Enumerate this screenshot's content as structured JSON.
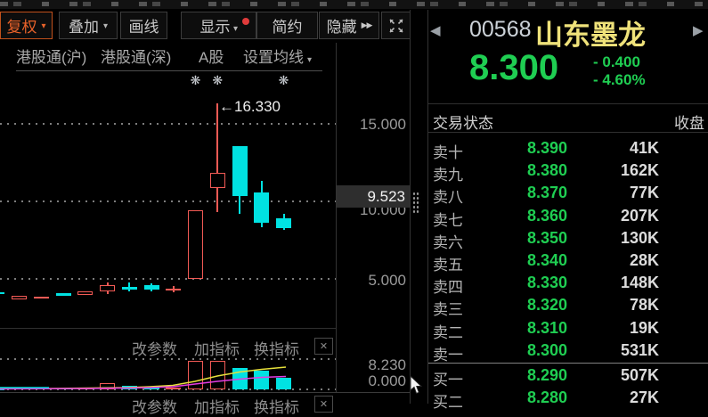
{
  "toolbar": {
    "buttons": [
      {
        "label": "复权",
        "caret": true,
        "active": true
      },
      {
        "label": "叠加",
        "caret": true
      },
      {
        "label": "画线"
      },
      {
        "label": "显示",
        "caret": true,
        "has_red_dot": true
      },
      {
        "label": "简约"
      },
      {
        "label": "隐藏",
        "chevrons": "▶▶"
      }
    ]
  },
  "icons": {
    "caret_down": "▾",
    "snowflake": "❋",
    "prev_arrow": "◀",
    "next_arrow": "▶",
    "close": "✕"
  },
  "tabs": [
    {
      "label": "港股通(沪)"
    },
    {
      "label": "港股通(深)"
    },
    {
      "label": "A股"
    },
    {
      "label": "设置均线",
      "caret": true
    }
  ],
  "indicator_bar": {
    "items": [
      {
        "label": "改参数"
      },
      {
        "label": "加指标"
      },
      {
        "label": "换指标"
      }
    ]
  },
  "chart_data": {
    "type": "candlestick",
    "y_axis": {
      "ticks": [
        {
          "label": "15.000",
          "value": 15.0
        },
        {
          "label": "10.000",
          "value": 10.0
        },
        {
          "label": "5.000",
          "value": 5.0
        }
      ],
      "crosshair_label": "9.523"
    },
    "volume_axis": {
      "max_label": "8.230",
      "min_label": "0.000",
      "max_value": 8.23
    },
    "annotation": {
      "text": "←16.330",
      "value": 16.33
    },
    "suspension_marker_indices": [
      9,
      10,
      13
    ],
    "candles": [
      {
        "open": 4.15,
        "close": 4.05,
        "high": 4.15,
        "low": 4.05,
        "dir": "down"
      },
      {
        "open": 3.68,
        "close": 3.91,
        "high": 3.93,
        "low": 3.66,
        "dir": "up"
      },
      {
        "open": 3.79,
        "close": 3.86,
        "high": 3.88,
        "low": 3.77,
        "dir": "up"
      },
      {
        "open": 4.08,
        "close": 3.97,
        "high": 4.1,
        "low": 3.95,
        "dir": "down"
      },
      {
        "open": 3.97,
        "close": 4.2,
        "high": 4.22,
        "low": 3.95,
        "dir": "up"
      },
      {
        "open": 4.2,
        "close": 4.6,
        "high": 4.77,
        "low": 4.03,
        "dir": "up"
      },
      {
        "open": 4.48,
        "close": 4.37,
        "high": 4.77,
        "low": 4.2,
        "dir": "down"
      },
      {
        "open": 4.6,
        "close": 4.31,
        "high": 4.71,
        "low": 4.2,
        "dir": "down"
      },
      {
        "open": 4.25,
        "close": 4.37,
        "high": 4.54,
        "low": 4.14,
        "dir": "up"
      },
      {
        "open": 5.0,
        "close": 9.43,
        "high": 9.43,
        "low": 5.0,
        "dir": "up"
      },
      {
        "open": 10.86,
        "close": 11.84,
        "high": 16.33,
        "low": 9.31,
        "dir": "up"
      },
      {
        "open": 13.56,
        "close": 10.34,
        "high": 13.56,
        "low": 9.2,
        "dir": "down"
      },
      {
        "open": 10.57,
        "close": 8.62,
        "high": 11.32,
        "low": 8.33,
        "dir": "down"
      },
      {
        "open": 8.9,
        "close": 8.3,
        "high": 9.2,
        "low": 8.16,
        "dir": "down"
      }
    ],
    "volumes": [
      {
        "value": 0.2,
        "dir": "down"
      },
      {
        "value": 0.35,
        "dir": "up"
      },
      {
        "value": 0.3,
        "dir": "up"
      },
      {
        "value": 0.3,
        "dir": "down"
      },
      {
        "value": 0.4,
        "dir": "up"
      },
      {
        "value": 1.7,
        "dir": "up"
      },
      {
        "value": 1.0,
        "dir": "down"
      },
      {
        "value": 0.75,
        "dir": "down"
      },
      {
        "value": 0.5,
        "dir": "up"
      },
      {
        "value": 7.75,
        "dir": "up"
      },
      {
        "value": 7.75,
        "dir": "up"
      },
      {
        "value": 5.8,
        "dir": "down"
      },
      {
        "value": 5.1,
        "dir": "down"
      },
      {
        "value": 3.15,
        "dir": "down"
      }
    ],
    "volume_ma": {
      "yellow": [
        [
          0,
          436
        ],
        [
          60,
          436
        ],
        [
          100,
          435.5
        ],
        [
          143,
          435
        ],
        [
          168,
          434
        ],
        [
          194,
          432.5
        ],
        [
          219,
          428
        ],
        [
          244,
          422
        ],
        [
          269,
          417.5
        ],
        [
          294,
          414.5
        ],
        [
          321,
          412
        ]
      ],
      "magenta": [
        [
          0,
          436.5
        ],
        [
          100,
          436
        ],
        [
          143,
          435.5
        ],
        [
          168,
          435
        ],
        [
          194,
          434
        ],
        [
          219,
          431
        ],
        [
          244,
          428
        ],
        [
          269,
          425.5
        ],
        [
          294,
          423.5
        ],
        [
          321,
          422.5
        ]
      ],
      "cyan": [
        [
          0,
          435
        ],
        [
          55,
          435
        ]
      ]
    }
  },
  "quote_panel": {
    "code": "00568",
    "name": "山东墨龙",
    "price": "8.300",
    "change": "- 0.400",
    "change_pct": "- 4.60%",
    "status_label": "交易状态",
    "status_value": "收盘",
    "book": {
      "asks": [
        {
          "label": "卖十",
          "price": "8.390",
          "volume": "41K"
        },
        {
          "label": "卖九",
          "price": "8.380",
          "volume": "162K"
        },
        {
          "label": "卖八",
          "price": "8.370",
          "volume": "77K"
        },
        {
          "label": "卖七",
          "price": "8.360",
          "volume": "207K"
        },
        {
          "label": "卖六",
          "price": "8.350",
          "volume": "130K"
        },
        {
          "label": "卖五",
          "price": "8.340",
          "volume": "28K"
        },
        {
          "label": "卖四",
          "price": "8.330",
          "volume": "148K"
        },
        {
          "label": "卖三",
          "price": "8.320",
          "volume": "78K"
        },
        {
          "label": "卖二",
          "price": "8.310",
          "volume": "19K"
        },
        {
          "label": "卖一",
          "price": "8.300",
          "volume": "531K"
        }
      ],
      "bids": [
        {
          "label": "买一",
          "price": "8.290",
          "volume": "507K"
        },
        {
          "label": "买二",
          "price": "8.280",
          "volume": "27K"
        }
      ]
    }
  },
  "colors": {
    "up_red": "#f25a55",
    "down_cyan": "#00e2e2",
    "quote_green": "#1fce52",
    "name_yellow": "#efe27a",
    "accent_orange": "#e8622a",
    "ma_yellow": "#e6e13c",
    "ma_magenta": "#e23ce2"
  }
}
